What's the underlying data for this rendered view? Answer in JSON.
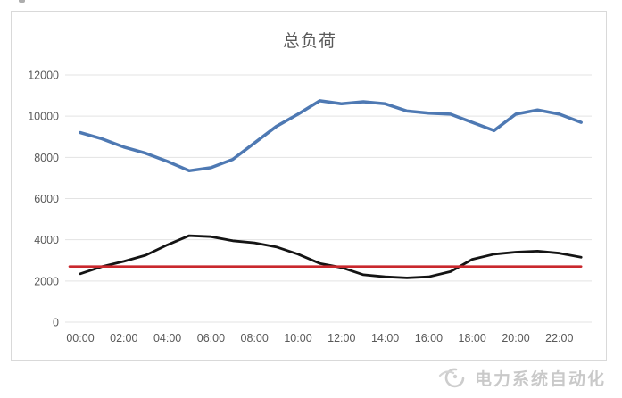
{
  "chart_data": {
    "type": "line",
    "title": "总负荷",
    "xlabel": "",
    "ylabel": "",
    "ylim": [
      0,
      12000
    ],
    "ytick_step": 2000,
    "ytick_labels": [
      "0",
      "2000",
      "4000",
      "6000",
      "8000",
      "10000",
      "12000"
    ],
    "x_tick_labels": [
      "00:00",
      "02:00",
      "04:00",
      "06:00",
      "08:00",
      "10:00",
      "12:00",
      "14:00",
      "16:00",
      "18:00",
      "20:00",
      "22:00"
    ],
    "categories": [
      "00:00",
      "01:00",
      "02:00",
      "03:00",
      "04:00",
      "05:00",
      "06:00",
      "07:00",
      "08:00",
      "09:00",
      "10:00",
      "11:00",
      "12:00",
      "13:00",
      "14:00",
      "15:00",
      "16:00",
      "17:00",
      "18:00",
      "19:00",
      "20:00",
      "21:00",
      "22:00",
      "23:00"
    ],
    "grid": "horizontal",
    "legend": "none",
    "series": [
      {
        "name": "blue_line",
        "color": "#4e79b3",
        "width": 3.5,
        "values": [
          9200,
          8900,
          8500,
          8200,
          7800,
          7350,
          7500,
          7900,
          8700,
          9500,
          10100,
          10750,
          10600,
          10700,
          10600,
          10250,
          10150,
          10100,
          9700,
          9300,
          10100,
          10300,
          10100,
          9700
        ]
      },
      {
        "name": "black_line",
        "color": "#141414",
        "width": 2.8,
        "values": [
          2350,
          2700,
          2950,
          3250,
          3750,
          4200,
          4150,
          3950,
          3850,
          3650,
          3300,
          2850,
          2650,
          2300,
          2200,
          2150,
          2200,
          2450,
          3050,
          3300,
          3400,
          3450,
          3350,
          3150
        ]
      },
      {
        "name": "red_reference_line",
        "color": "#c9282d",
        "width": 2.6,
        "constant": 2700
      }
    ],
    "colors": {
      "grid": "#e3e3e3",
      "axis_text": "#595959",
      "title_text": "#595959",
      "chart_border": "#d9d9d9"
    }
  },
  "footer": {
    "brand_text": "电力系统自动化",
    "logo_icon": "swirl-logo-icon"
  }
}
